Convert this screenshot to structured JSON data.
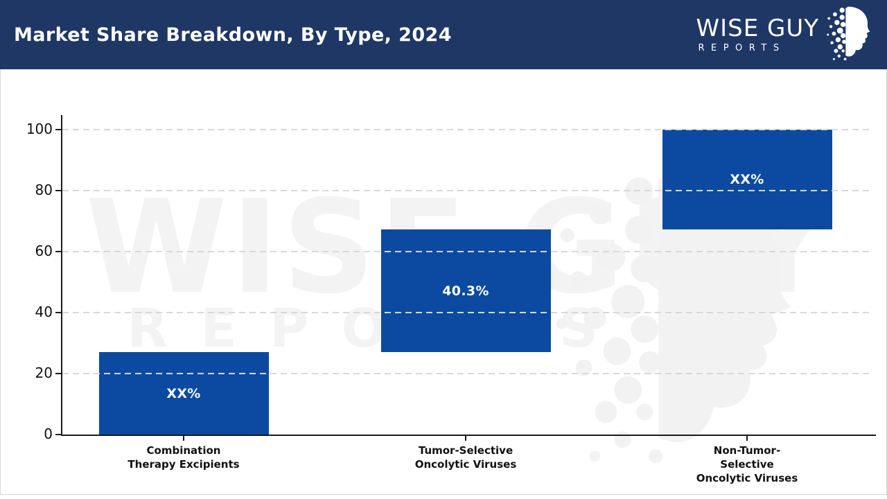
{
  "header": {
    "title": "Market Share Breakdown, By Type, 2024",
    "logo": {
      "name": "WISE GUY",
      "sub": "REPORTS"
    }
  },
  "watermark": {
    "name": "WISE GUY",
    "sub": "REPORTS"
  },
  "colors": {
    "header_bg": "#1F3765",
    "bar": "#0B4AA0",
    "bar_label": "#ffffff",
    "grid": "#d8d8d8",
    "axis": "#1a1a1a",
    "watermark": "#f3f3f3"
  },
  "chart_data": {
    "type": "bar",
    "subtype": "waterfall",
    "title": "Market Share Breakdown, By Type, 2024",
    "categories": [
      "Combination Therapy Excipients",
      "Tumor-Selective Oncolytic Viruses",
      "Non-Tumor-Selective Oncolytic Viruses"
    ],
    "category_label_lines": [
      [
        "Combination",
        "Therapy Excipients"
      ],
      [
        "Tumor-Selective",
        "Oncolytic Viruses"
      ],
      [
        "Non-Tumor-",
        "Selective",
        "Oncolytic Viruses"
      ]
    ],
    "series": [
      {
        "name": "Market Share (%)",
        "segments": [
          {
            "category": "Combination Therapy Excipients",
            "start": 0,
            "end": 27,
            "label": "XX%"
          },
          {
            "category": "Tumor-Selective Oncolytic Viruses",
            "start": 27,
            "end": 67.3,
            "label": "40.3%"
          },
          {
            "category": "Non-Tumor-Selective Oncolytic Viruses",
            "start": 67.3,
            "end": 100,
            "label": "XX%"
          }
        ]
      }
    ],
    "ylim": [
      0,
      100
    ],
    "yticks": [
      0,
      20,
      40,
      60,
      80,
      100
    ],
    "xlabel": "",
    "ylabel": "",
    "grid": true,
    "grid_style": "dashed",
    "legend": "none"
  }
}
